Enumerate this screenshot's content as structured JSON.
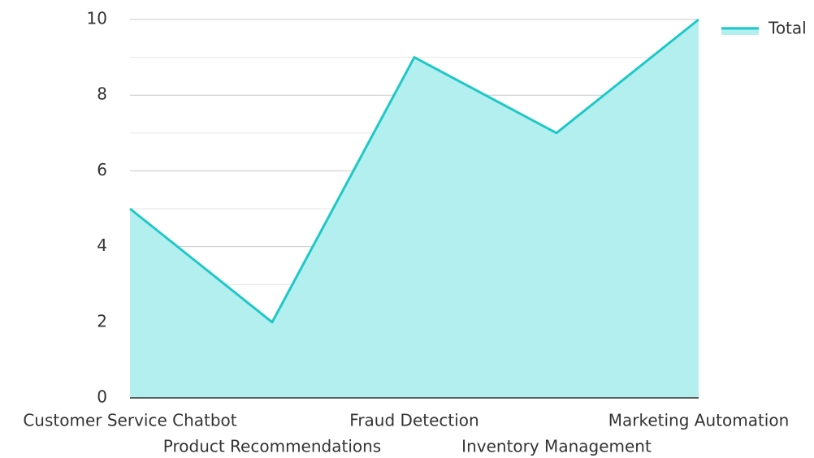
{
  "chart_data": {
    "type": "area",
    "categories": [
      "Customer Service Chatbot",
      "Product Recommendations",
      "Fraud Detection",
      "Inventory Management",
      "Marketing Automation"
    ],
    "series": [
      {
        "name": "Total",
        "color": "#1fc8c8",
        "fill": "#b3efee",
        "values": [
          5,
          2,
          9,
          7,
          10
        ]
      }
    ],
    "ylim": [
      0,
      10
    ],
    "yticks": [
      0,
      2,
      4,
      6,
      8,
      10
    ],
    "minor_yticks": [
      1,
      3,
      5,
      7,
      9
    ],
    "grid": true,
    "legend": "top-right"
  }
}
